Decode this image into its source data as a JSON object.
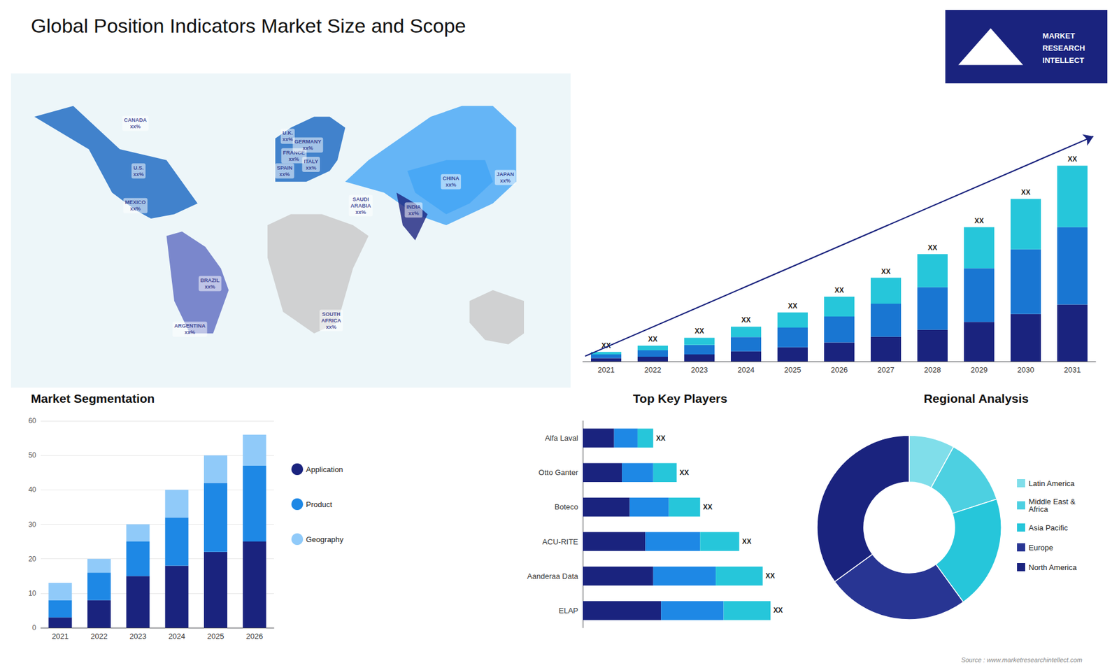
{
  "title": "Global Position Indicators Market Size and Scope",
  "logo": [
    "MARKET",
    "RESEARCH",
    "INTELLECT"
  ],
  "source": "Source : www.marketresearchintellect.com",
  "chart_data": [
    {
      "type": "map",
      "xlim": [
        -180,
        180
      ],
      "ylim": [
        -60,
        85
      ],
      "tick_labels": false,
      "grid": false,
      "regions": [
        {
          "color": "#e8f4f8",
          "x": [
            -180,
            180,
            180,
            -180
          ],
          "y": [
            -60,
            -60,
            85,
            85
          ]
        },
        {
          "color": "#1565c0",
          "x": [
            -165,
            -140,
            -125,
            -110,
            -80,
            -75,
            -65,
            -60,
            -75,
            -90,
            -100,
            -115,
            -130,
            -165
          ],
          "y": [
            65,
            70,
            60,
            50,
            45,
            40,
            30,
            25,
            20,
            18,
            22,
            30,
            50,
            65
          ]
        },
        {
          "color": "#5c6bc0",
          "x": [
            -80,
            -70,
            -55,
            -45,
            -40,
            -50,
            -65,
            -75,
            -80
          ],
          "y": [
            10,
            12,
            5,
            -5,
            -15,
            -35,
            -35,
            -20,
            10
          ]
        },
        {
          "color": "#1565c0",
          "x": [
            -10,
            0,
            10,
            25,
            30,
            35,
            25,
            15,
            0,
            -10
          ],
          "y": [
            35,
            35,
            35,
            40,
            45,
            60,
            65,
            65,
            60,
            55
          ]
        },
        {
          "color": "#c8c8c8",
          "x": [
            -15,
            0,
            20,
            40,
            50,
            40,
            30,
            15,
            -5,
            -15
          ],
          "y": [
            15,
            20,
            20,
            15,
            10,
            -5,
            -30,
            -35,
            -25,
            0
          ]
        },
        {
          "color": "#42a5f5",
          "x": [
            35,
            60,
            80,
            100,
            130,
            145,
            145,
            130,
            110,
            90,
            70,
            50,
            35
          ],
          "y": [
            35,
            30,
            20,
            15,
            25,
            35,
            60,
            70,
            70,
            65,
            55,
            45,
            35
          ]
        },
        {
          "color": "#1a237e",
          "x": [
            68,
            80,
            88,
            80,
            72,
            68
          ],
          "y": [
            30,
            25,
            20,
            8,
            15,
            30
          ]
        },
        {
          "color": "#42a5f5",
          "x": [
            75,
            100,
            125,
            130,
            115,
            100,
            80,
            75
          ],
          "y": [
            40,
            45,
            45,
            35,
            25,
            20,
            30,
            40
          ]
        },
        {
          "color": "#c8c8c8",
          "x": [
            115,
            130,
            150,
            150,
            140,
            125,
            115
          ],
          "y": [
            -20,
            -15,
            -20,
            -35,
            -40,
            -38,
            -30
          ]
        }
      ],
      "labels": [
        {
          "text": "U.S.\nxx%",
          "x": -98,
          "y": 40
        },
        {
          "text": "CANADA\nxx%",
          "x": -100,
          "y": 62
        },
        {
          "text": "MEXICO\nxx%",
          "x": -100,
          "y": 24
        },
        {
          "text": "BRAZIL\nxx%",
          "x": -52,
          "y": -12
        },
        {
          "text": "ARGENTINA\nxx%",
          "x": -65,
          "y": -33
        },
        {
          "text": "U.K.\nxx%",
          "x": -2,
          "y": 56
        },
        {
          "text": "FRANCE\nxx%",
          "x": 2,
          "y": 47
        },
        {
          "text": "GERMANY\nxx%",
          "x": 11,
          "y": 52
        },
        {
          "text": "SPAIN\nxx%",
          "x": -4,
          "y": 40
        },
        {
          "text": "ITALY\nxx%",
          "x": 13,
          "y": 43
        },
        {
          "text": "SAUDI\nARABIA\nxx%",
          "x": 45,
          "y": 24
        },
        {
          "text": "SOUTH\nAFRICA\nxx%",
          "x": 26,
          "y": -29
        },
        {
          "text": "CHINA\nxx%",
          "x": 103,
          "y": 35
        },
        {
          "text": "INDIA\nxx%",
          "x": 79,
          "y": 22
        },
        {
          "text": "JAPAN\nxx%",
          "x": 138,
          "y": 37
        }
      ]
    },
    {
      "type": "bar",
      "stacked": true,
      "categories": [
        "2021",
        "2022",
        "2023",
        "2024",
        "2025",
        "2026",
        "2027",
        "2028",
        "2029",
        "2030",
        "2031"
      ],
      "series": [
        {
          "color": "#1a237e",
          "values": [
            1.0,
            1.5,
            2.2,
            3.2,
            4.5,
            6.0,
            7.8,
            10.0,
            12.5,
            15.0,
            18.0
          ]
        },
        {
          "color": "#1976d2",
          "values": [
            1.2,
            2.0,
            3.0,
            4.5,
            6.2,
            8.2,
            10.5,
            13.5,
            17.0,
            20.5,
            24.5
          ]
        },
        {
          "color": "#26c6da",
          "values": [
            0.8,
            1.5,
            2.3,
            3.3,
            4.8,
            6.3,
            8.2,
            10.5,
            13.0,
            16.0,
            19.5
          ]
        }
      ],
      "annotation": "XX",
      "trend_line": {
        "color": "#1a237e"
      },
      "ylim": [
        0,
        86.8
      ],
      "grid": false,
      "tick_labels": "x"
    },
    {
      "type": "bar",
      "title": "Market Segmentation",
      "stacked": true,
      "categories": [
        "2021",
        "2022",
        "2023",
        "2024",
        "2025",
        "2026"
      ],
      "series": [
        {
          "name": "Application",
          "color": "#1a237e",
          "values": [
            3,
            8,
            15,
            18,
            22,
            25
          ]
        },
        {
          "name": "Product",
          "color": "#1e88e5",
          "values": [
            5,
            8,
            10,
            14,
            20,
            22
          ]
        },
        {
          "name": "Geography",
          "color": "#90caf9",
          "values": [
            5,
            4,
            5,
            8,
            8,
            9
          ]
        }
      ],
      "ylim": [
        0,
        60
      ],
      "yticks": [
        0,
        10,
        20,
        30,
        40,
        50,
        60
      ],
      "grid": true,
      "legend": "right"
    },
    {
      "type": "bar",
      "title": "Top Key Players",
      "orientation": "horizontal",
      "stacked": true,
      "categories": [
        "ELAP",
        "Aanderaa Data",
        "ACU-RITE",
        "Boteco",
        "Otto Ganter",
        "Alfa Laval"
      ],
      "series": [
        {
          "color": "#1a237e",
          "values": [
            5.0,
            4.5,
            4.0,
            3.0,
            2.5,
            2.0
          ]
        },
        {
          "color": "#1e88e5",
          "values": [
            4.0,
            4.0,
            3.5,
            2.5,
            2.0,
            1.5
          ]
        },
        {
          "color": "#26c6da",
          "values": [
            3.0,
            3.0,
            2.5,
            2.0,
            1.5,
            1.0
          ]
        }
      ],
      "annotation": "XX",
      "xlim": [
        0,
        14.16
      ],
      "grid": false,
      "tick_labels": "y"
    },
    {
      "type": "pie",
      "title": "Regional Analysis",
      "categories": [
        "Latin America",
        "Middle East &\nAfrica",
        "Asia Pacific",
        "Europe",
        "North America"
      ],
      "values": [
        8,
        12,
        20,
        25,
        35
      ],
      "colors": [
        "#80deea",
        "#4dd0e1",
        "#26c6da",
        "#283593",
        "#1a237e"
      ],
      "legend": "right"
    }
  ]
}
